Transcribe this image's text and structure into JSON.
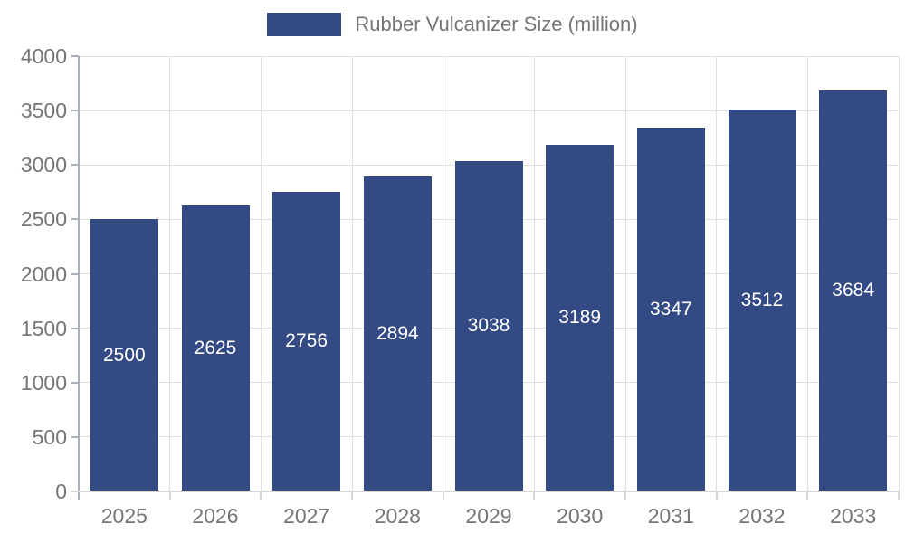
{
  "chart_data": {
    "type": "bar",
    "title": "",
    "legend": "Rubber Vulcanizer Size (million)",
    "legend_position": "top",
    "categories": [
      "2025",
      "2026",
      "2027",
      "2028",
      "2029",
      "2030",
      "2031",
      "2032",
      "2033"
    ],
    "values": [
      2500,
      2625,
      2756,
      2894,
      3038,
      3189,
      3347,
      3512,
      3684
    ],
    "xlabel": "",
    "ylabel": "",
    "ylim": [
      0,
      4000
    ],
    "ytick_step": 500,
    "yticks": [
      0,
      500,
      1000,
      1500,
      2000,
      2500,
      3000,
      3500,
      4000
    ],
    "grid": true,
    "value_labels": "inside-center",
    "colors": {
      "bar": "#344a84",
      "bar_label_text": "#ffffff",
      "axis_text": "#757575",
      "gridline": "#e0e0e0",
      "y_axis_line": "#aab0ba",
      "x_axis_line": "#d8d8d8",
      "background": "#ffffff"
    }
  }
}
